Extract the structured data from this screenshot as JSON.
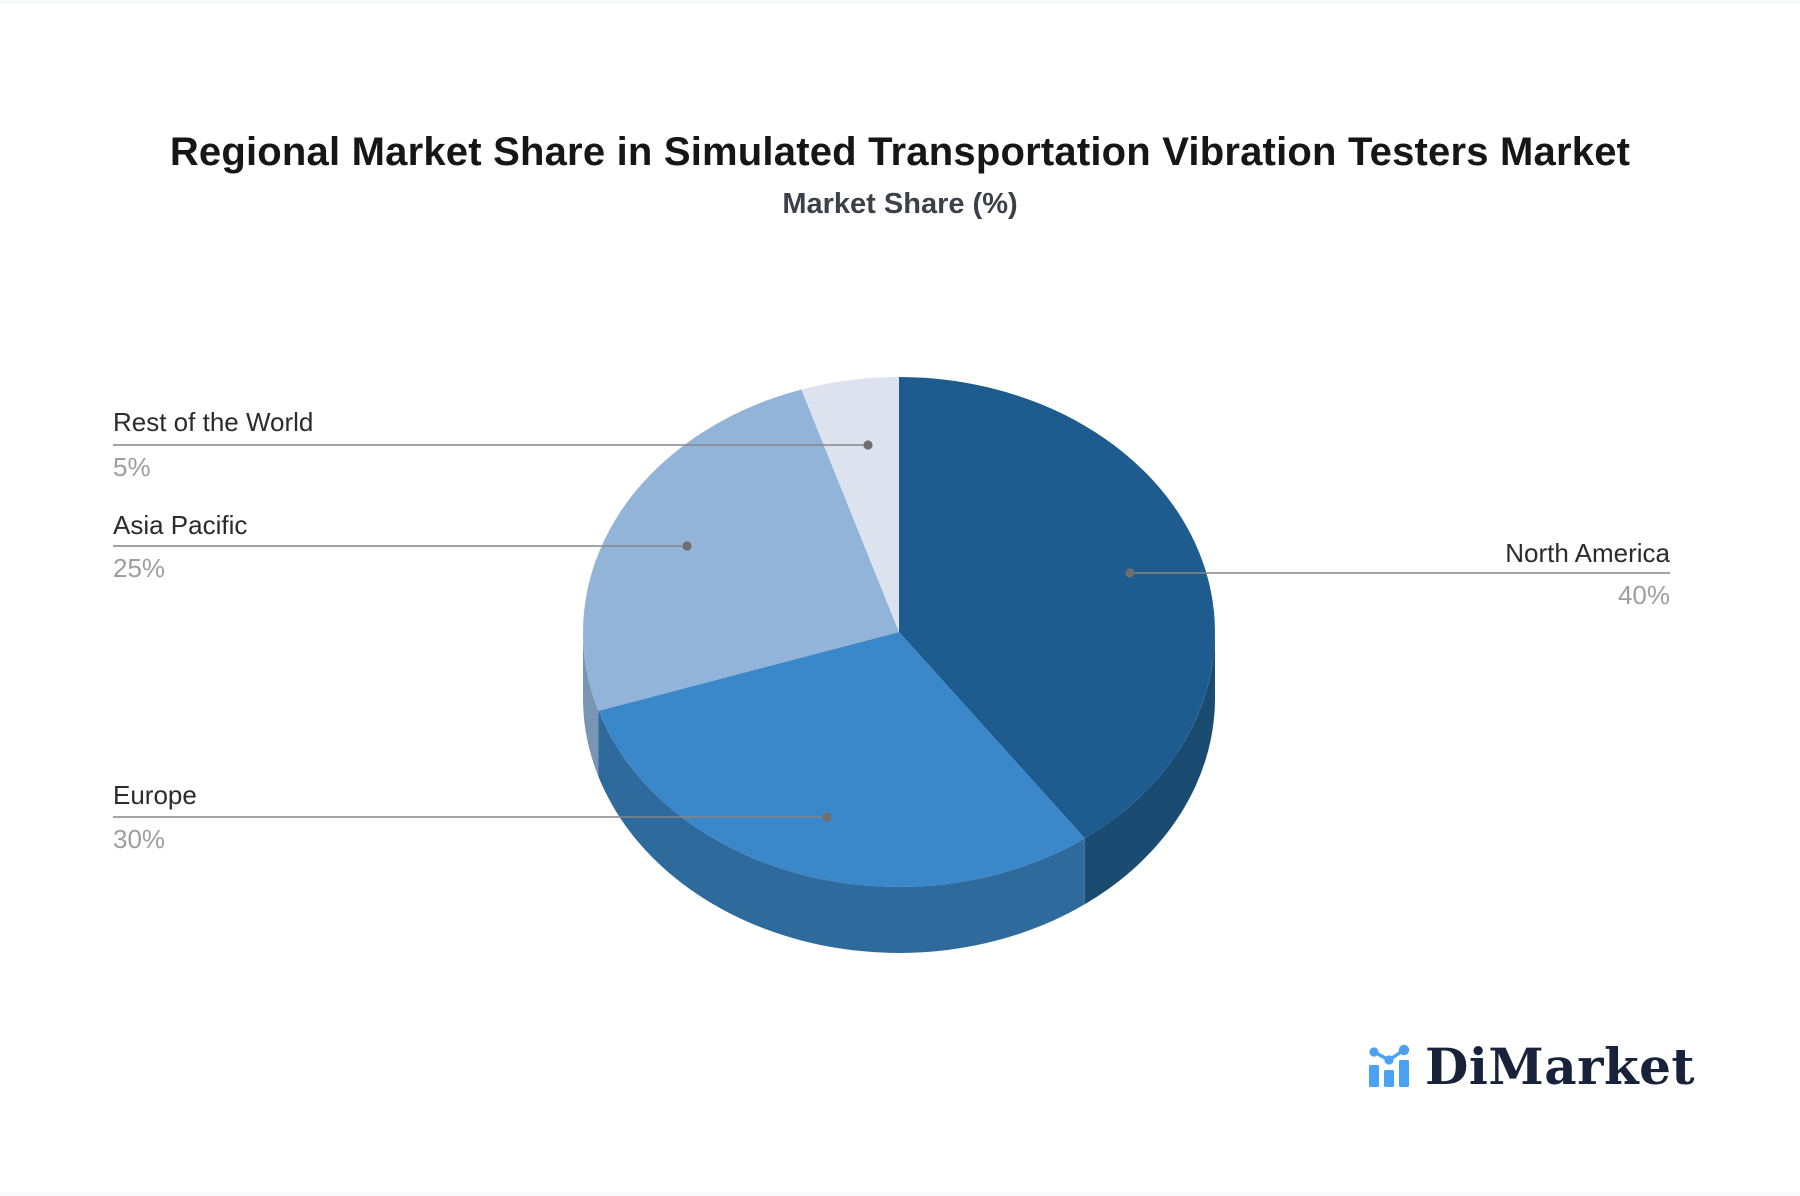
{
  "title": "Regional Market Share in Simulated Transportation Vibration Testers Market",
  "subtitle": "Market Share (%)",
  "chart_data": {
    "type": "pie",
    "style": "3d",
    "title": "Regional Market Share in Simulated Transportation Vibration Testers Market",
    "subtitle": "Market Share (%)",
    "unit": "%",
    "start_angle_deg": 0,
    "direction": "clockwise",
    "legend": "none",
    "slices": [
      {
        "label": "North America",
        "value": 40,
        "display": "40%",
        "color": "#1e5c8f",
        "side_color": "#1a4c71"
      },
      {
        "label": "Europe",
        "value": 30,
        "display": "30%",
        "color": "#3a88ca",
        "side_color": "#2e6b9c"
      },
      {
        "label": "Asia Pacific",
        "value": 25,
        "display": "25%",
        "color": "#92b4d9",
        "side_color": "#7896b4"
      },
      {
        "label": "Rest of the World",
        "value": 5,
        "display": "5%",
        "color": "#dce3ee",
        "side_color": "#b9c6da"
      }
    ]
  },
  "colors": {
    "connector_line": "#868686",
    "connector_dot": "#6e6e6e",
    "label_name": "#2b2b2b",
    "label_value": "#9e9e9e",
    "title": "#161616",
    "subtitle": "#3b4149",
    "brand_text": "#18223a",
    "brand_icon": "#4aa2f2"
  },
  "brand": {
    "name": "DiMarket"
  }
}
